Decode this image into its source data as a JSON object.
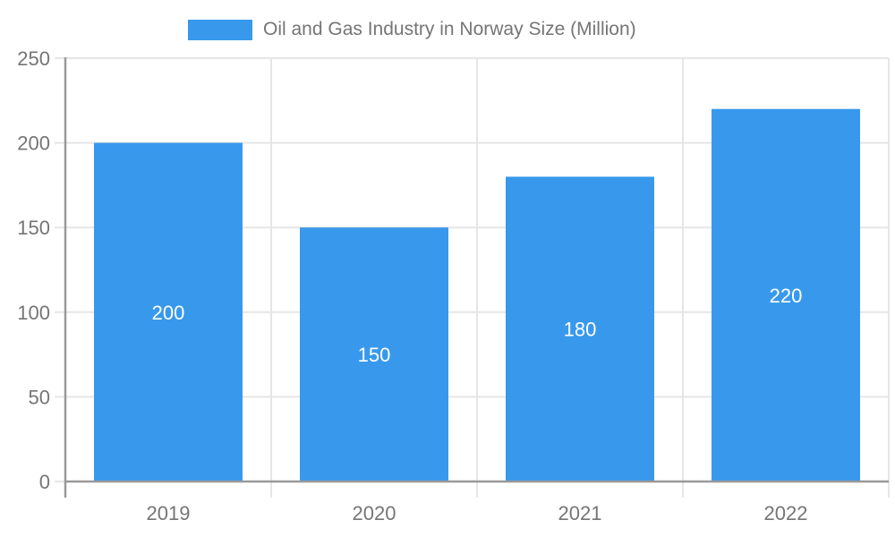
{
  "legend": {
    "label": "Oil and Gas Industry in Norway Size (Million)",
    "swatch_color": "#3899EC"
  },
  "chart_data": {
    "type": "bar",
    "title": "Oil and Gas Industry in Norway Size (Million)",
    "categories": [
      "2019",
      "2020",
      "2021",
      "2022"
    ],
    "values": [
      200,
      150,
      180,
      220
    ],
    "xlabel": "",
    "ylabel": "",
    "ylim": [
      0,
      250
    ],
    "y_ticks": [
      0,
      50,
      100,
      150,
      200,
      250
    ],
    "grid": "on",
    "legend_position": "top",
    "colors": {
      "bar": "#3899EC",
      "data_label": "#FFFFFF",
      "axis_text": "#757575",
      "axis_line": "#999999",
      "gridline": "#E6E6E6",
      "background": "#FFFFFF"
    }
  }
}
